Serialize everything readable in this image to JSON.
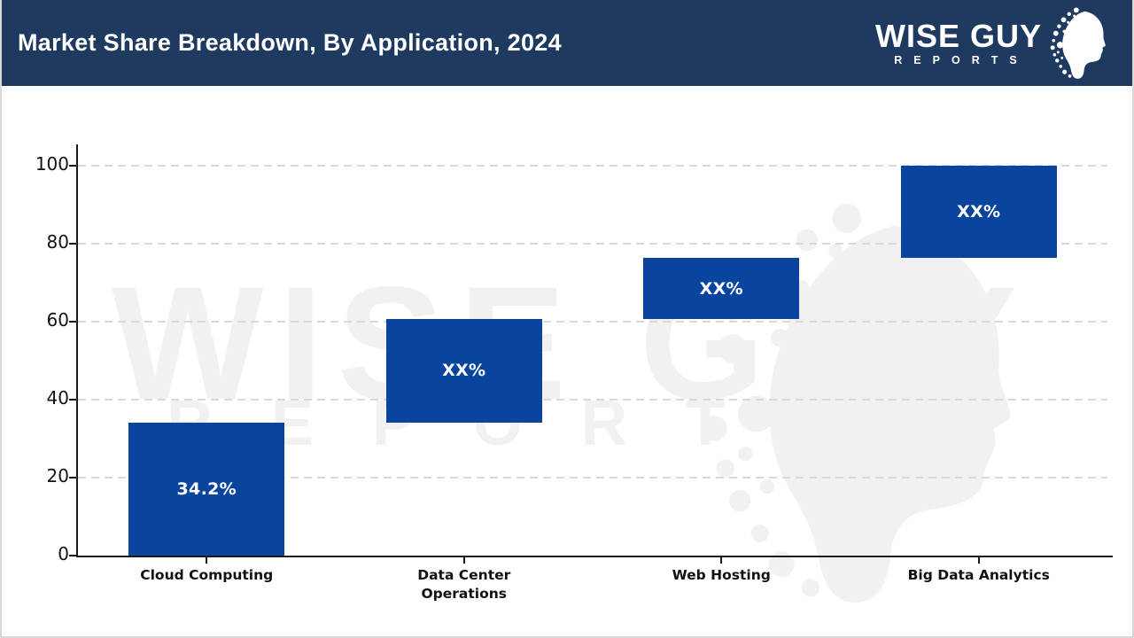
{
  "header": {
    "bg_color": "#1f3a60",
    "title": "Market Share Breakdown, By Application, 2024",
    "logo": {
      "line1": "WISE GUY",
      "line2": "REPORTS"
    }
  },
  "watermark": {
    "line1": "WISE GUY",
    "line2": "REPORTS"
  },
  "chart_data": {
    "type": "bar",
    "subtype": "waterfall-stacked",
    "title": "Market Share Breakdown, By Application, 2024",
    "categories": [
      "Cloud Computing",
      "Data Center\nOperations",
      "Web Hosting",
      "Big Data Analytics"
    ],
    "segments": [
      {
        "category": "Cloud Computing",
        "start": 0,
        "end": 34.2,
        "label": "34.2%"
      },
      {
        "category": "Data Center Operations",
        "start": 34.2,
        "end": 60.6,
        "label": "XX%"
      },
      {
        "category": "Web Hosting",
        "start": 60.6,
        "end": 76.4,
        "label": "XX%"
      },
      {
        "category": "Big Data Analytics",
        "start": 76.4,
        "end": 100,
        "label": "XX%"
      }
    ],
    "xlabel": "",
    "ylabel": "",
    "ylim": [
      0,
      100
    ],
    "yticks": [
      0,
      20,
      40,
      60,
      80,
      100
    ],
    "grid": "y-dashed",
    "legend": "none",
    "bar_color": "#09459e",
    "bar_label_color": "#ffffff",
    "axis_color": "#1a1a1a",
    "gridline_color": "#d9d9d9"
  }
}
